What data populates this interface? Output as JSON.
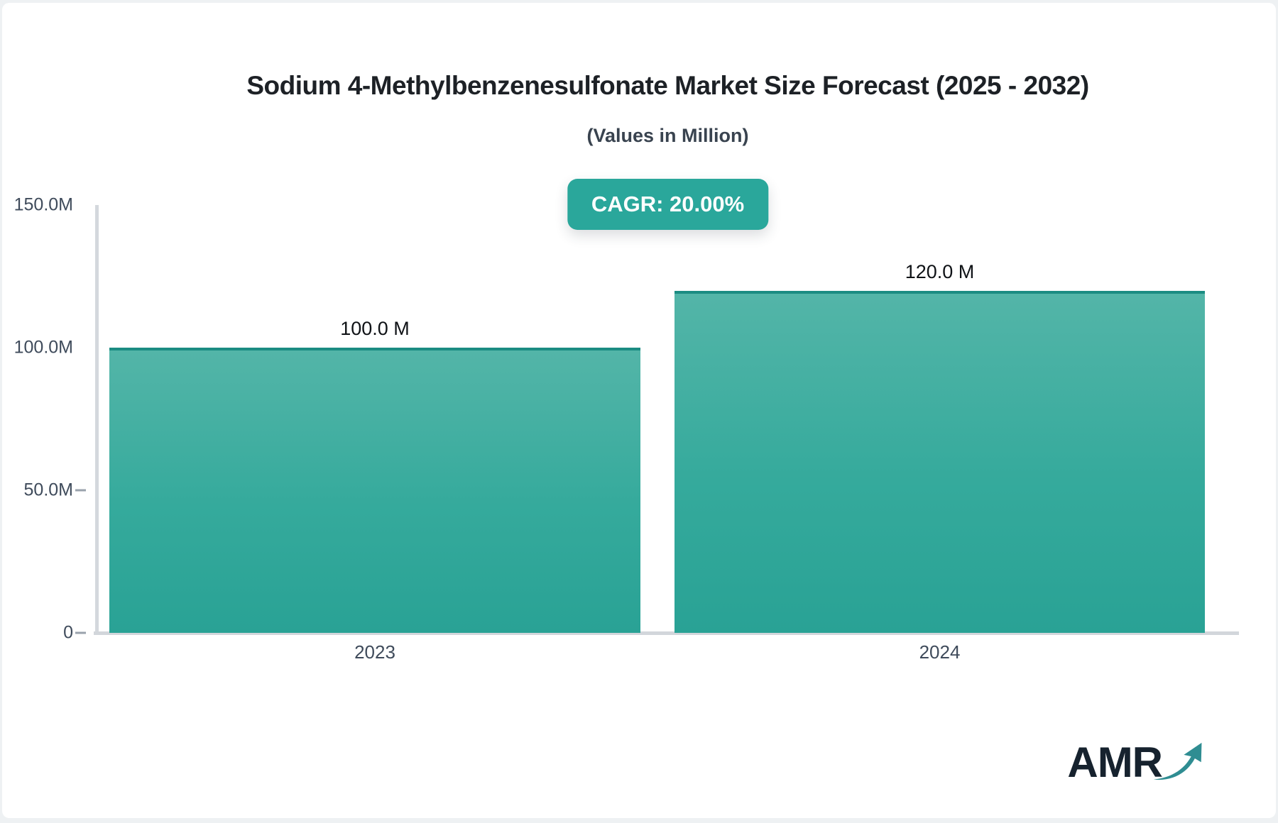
{
  "header": {
    "title": "Sodium 4-Methylbenzenesulfonate Market Size Forecast (2025 - 2032)",
    "subtitle": "(Values in Million)",
    "cagr_badge": "CAGR: 20.00%"
  },
  "chart_data": {
    "type": "bar",
    "title": "Sodium 4-Methylbenzenesulfonate Market Size Forecast (2025 - 2032)",
    "subtitle": "(Values in Million)",
    "unit": "Million",
    "categories": [
      "2023",
      "2024"
    ],
    "values": [
      100.0,
      120.0
    ],
    "value_labels": [
      "100.0 M",
      "120.0 M"
    ],
    "ylim": [
      0,
      150
    ],
    "grid": false,
    "yticks": [
      {
        "value": 150,
        "label": "150.0M",
        "dash": false
      },
      {
        "value": 100,
        "label": "100.0M",
        "dash": false
      },
      {
        "value": 50,
        "label": "50.0M",
        "dash": true
      },
      {
        "value": 0,
        "label": "0",
        "dash": true
      }
    ]
  },
  "colors": {
    "accent_teal": "#2aa79b",
    "bar_gradient_top": "#53b5a8",
    "bar_gradient_bottom": "#29a295",
    "bar_border": "#1b8c82",
    "axis_line": "#d4d8dd",
    "tick_text": "#3f4b5b",
    "title_text": "#1d2126",
    "badge_text": "#ffffff",
    "logo_text_color": "#16222e",
    "logo_arrow_color": "#2f8d92"
  },
  "logo": {
    "text": "AMR"
  }
}
